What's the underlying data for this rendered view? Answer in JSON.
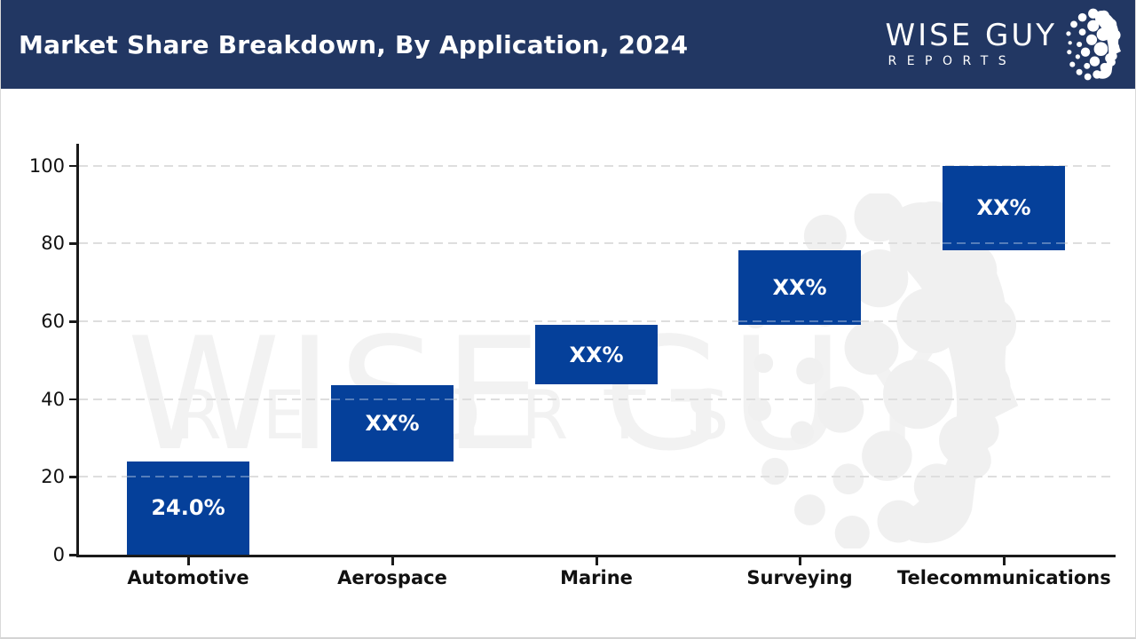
{
  "header": {
    "title": "Market Share Breakdown, By Application, 2024",
    "logo": {
      "wordmark": "WISE GUY",
      "subtext": "REPORTS"
    }
  },
  "watermark": {
    "wordmark": "WISE GUY",
    "subtext": "REPORTS"
  },
  "colors": {
    "header_bg": "#223763",
    "bar": "#05409A",
    "grid": "#DEDEDE",
    "axis": "#1A1A1A",
    "watermark": "#F0F0F0",
    "value_label": "#FFFFFF"
  },
  "chart_data": {
    "type": "bar",
    "subtype": "waterfall",
    "title": "Market Share Breakdown, By Application, 2024",
    "categories": [
      "Automotive",
      "Aerospace",
      "Marine",
      "Surveying",
      "Telecommunications"
    ],
    "series": [
      {
        "name": "Market share (%)",
        "segments": [
          {
            "category": "Automotive",
            "start": 0,
            "end": 24.0,
            "label": "24.0%"
          },
          {
            "category": "Aerospace",
            "start": 24.0,
            "end": 43.7,
            "label": "XX%"
          },
          {
            "category": "Marine",
            "start": 43.7,
            "end": 59.1,
            "label": "XX%"
          },
          {
            "category": "Surveying",
            "start": 59.1,
            "end": 78.3,
            "label": "XX%"
          },
          {
            "category": "Telecommunications",
            "start": 78.3,
            "end": 100.0,
            "label": "XX%"
          }
        ]
      }
    ],
    "xlabel": "",
    "ylabel": "",
    "yticks": [
      0,
      20,
      40,
      60,
      80,
      100
    ],
    "ylim": [
      0,
      106
    ],
    "grid": "horizontal-dashed",
    "legend": "none"
  }
}
